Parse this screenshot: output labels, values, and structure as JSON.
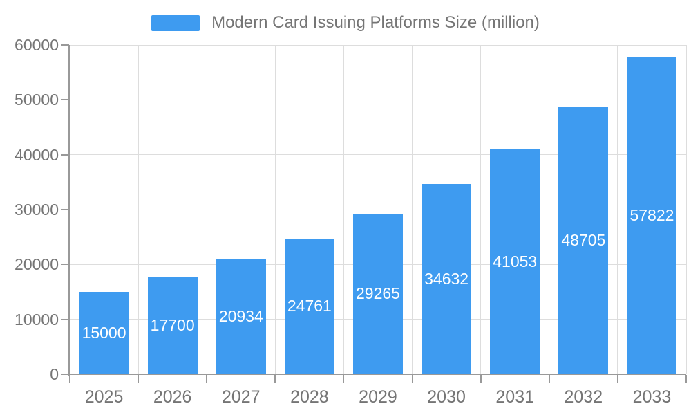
{
  "chart_data": {
    "type": "bar",
    "title": "Modern Card Issuing Platforms Size (million)",
    "categories": [
      "2025",
      "2026",
      "2027",
      "2028",
      "2029",
      "2030",
      "2031",
      "2032",
      "2033"
    ],
    "values": [
      15000,
      17700,
      20934,
      24761,
      29265,
      34632,
      41053,
      48705,
      57822
    ],
    "xlabel": "",
    "ylabel": "",
    "ylim": [
      0,
      60000
    ],
    "ytick_step": 10000,
    "ytick_labels": [
      "0",
      "10000",
      "20000",
      "30000",
      "40000",
      "50000",
      "60000"
    ],
    "grid": "horizontal-and-vertical",
    "legend_position": "top-center",
    "bar_labels_position": "inside-middle"
  },
  "colors": {
    "bar": "#3E9BF0",
    "bar_value_label": "#ffffff",
    "axis_line": "#999999",
    "tick": "#999999",
    "gridline": "#dddddd",
    "axis_text": "#757575",
    "legend_text": "#757575",
    "background": "#ffffff"
  }
}
